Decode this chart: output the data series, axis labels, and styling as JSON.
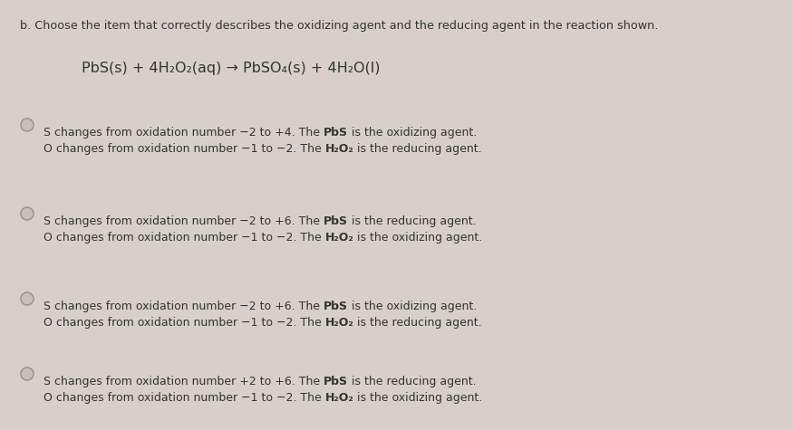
{
  "background_color": "#d8d0c8",
  "title_line": "b. Choose the item that correctly describes the oxidizing agent and the reducing agent in the reaction shown.",
  "reaction_parts": [
    {
      "text": "PbS(",
      "bold": false,
      "italic": false
    },
    {
      "text": "s",
      "bold": false,
      "italic": true
    },
    {
      "text": ") + 4H",
      "bold": false,
      "italic": false
    },
    {
      "text": "2",
      "bold": false,
      "italic": false,
      "sub": true
    },
    {
      "text": "O",
      "bold": false,
      "italic": false
    },
    {
      "text": "2",
      "bold": false,
      "italic": false,
      "sub": true
    },
    {
      "text": "(aq) → PbSO",
      "bold": false,
      "italic": false
    },
    {
      "text": "4",
      "bold": false,
      "italic": false,
      "sub": true
    },
    {
      "text": "(",
      "bold": false,
      "italic": false
    },
    {
      "text": "s",
      "bold": false,
      "italic": true
    },
    {
      "text": ") + 4H",
      "bold": false,
      "italic": false
    },
    {
      "text": "2",
      "bold": false,
      "italic": false,
      "sub": true
    },
    {
      "text": "O(",
      "bold": false,
      "italic": false
    },
    {
      "text": "l",
      "bold": false,
      "italic": true
    },
    {
      "text": ")",
      "bold": false,
      "italic": false
    }
  ],
  "options": [
    {
      "line1_plain": "S changes from oxidation number −2 to +4. The ",
      "line1_bold": "PbS",
      "line1_end": " is the oxidizing agent.",
      "line2_plain": "O changes from oxidation number −1 to −2. The ",
      "line2_bold": "H₂O₂",
      "line2_end": " is the reducing agent."
    },
    {
      "line1_plain": "S changes from oxidation number −2 to +6. The ",
      "line1_bold": "PbS",
      "line1_end": " is the reducing agent.",
      "line2_plain": "O changes from oxidation number −1 to −2. The ",
      "line2_bold": "H₂O₂",
      "line2_end": " is the oxidizing agent."
    },
    {
      "line1_plain": "S changes from oxidation number −2 to +6. The ",
      "line1_bold": "PbS",
      "line1_end": " is the oxidizing agent.",
      "line2_plain": "O changes from oxidation number −1 to −2. The ",
      "line2_bold": "H₂O₂",
      "line2_end": " is the reducing agent."
    },
    {
      "line1_plain": "S changes from oxidation number +2 to +6. The ",
      "line1_bold": "PbS",
      "line1_end": " is the reducing agent.",
      "line2_plain": "O changes from oxidation number −1 to −2. The ",
      "line2_bold": "H₂O₂",
      "line2_end": " is the oxidizing agent."
    }
  ],
  "text_color": "#333333",
  "circle_color": "#bbbbbb",
  "font_size_title": 9.2,
  "font_size_reaction": 11.5,
  "font_size_options": 9.0,
  "fig_width": 8.75,
  "fig_height": 4.75,
  "dpi": 100
}
